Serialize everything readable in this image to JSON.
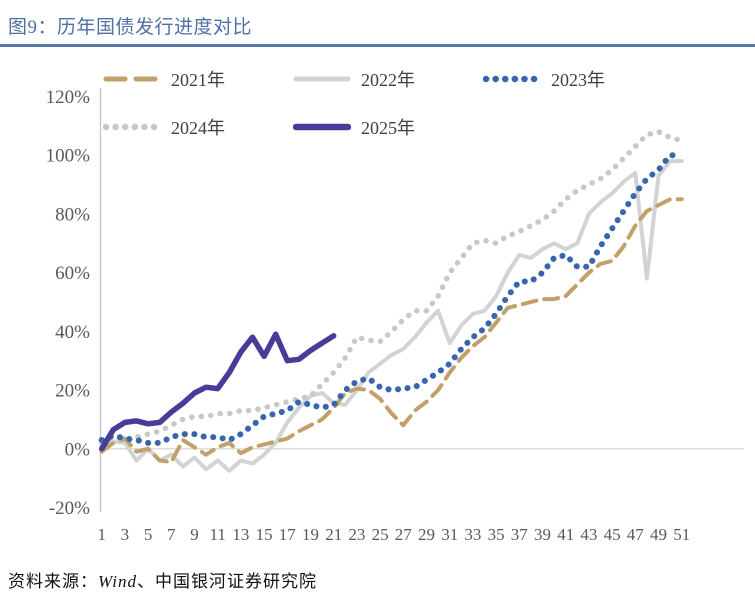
{
  "header": {
    "title": "图9：历年国债发行进度对比"
  },
  "footer": {
    "prefix": "资料来源：",
    "source": "Wind",
    "suffix": "、中国银河证券研究院"
  },
  "colors": {
    "title_text": "#4E71A5",
    "title_rule": "#5578A9",
    "axis_text": "#595959",
    "gridline": "#D9D9D9",
    "axis_spine": "#C6C6C6",
    "footer_text": "#111111",
    "legend_text": "#404040"
  },
  "chart_data": {
    "type": "line",
    "title": "图9：历年国债发行进度对比",
    "xlabel": "",
    "ylabel": "",
    "x_unit": "week",
    "x_start": 1,
    "xlim": [
      1,
      52
    ],
    "ylim": [
      -20,
      120
    ],
    "grid": "only-zero-line",
    "legend_position": "top",
    "x_ticks": [
      1,
      3,
      5,
      7,
      9,
      11,
      13,
      15,
      17,
      19,
      21,
      23,
      25,
      27,
      29,
      31,
      33,
      35,
      37,
      39,
      41,
      43,
      45,
      47,
      49,
      51
    ],
    "y_ticks": [
      {
        "label": "120%",
        "value": 120
      },
      {
        "label": "100%",
        "value": 100
      },
      {
        "label": "80%",
        "value": 80
      },
      {
        "label": "60%",
        "value": 60
      },
      {
        "label": "40%",
        "value": 40
      },
      {
        "label": "20%",
        "value": 20
      },
      {
        "label": "0%",
        "value": 0
      },
      {
        "label": "-20%",
        "value": -20
      }
    ],
    "series": [
      {
        "name": "2021年",
        "color": "#C2A06A",
        "style": "dashed",
        "line_width": 4,
        "values": [
          -1,
          2,
          3.5,
          -1,
          0,
          -4,
          -4.5,
          3,
          0.5,
          -2,
          0.5,
          2,
          -1.5,
          0.5,
          1.5,
          2.5,
          3.5,
          6,
          8,
          10,
          14,
          19,
          20.5,
          20,
          17,
          12,
          8,
          13,
          16,
          20,
          26,
          31,
          35,
          38,
          43,
          48,
          49,
          50,
          51,
          51,
          52,
          56,
          60,
          63,
          64,
          69,
          76,
          81,
          83,
          85,
          85
        ]
      },
      {
        "name": "2022年",
        "color": "#D3D3D3",
        "style": "solid",
        "line_width": 4,
        "values": [
          0,
          2.5,
          2,
          -4,
          0,
          -4,
          -2,
          -6,
          -3,
          -7,
          -4,
          -7.5,
          -4,
          -5,
          -2,
          2,
          9,
          14,
          18,
          19,
          15.5,
          15,
          20,
          26,
          29,
          32,
          34,
          38,
          43,
          47,
          36,
          42,
          46,
          47,
          52,
          60,
          66,
          65,
          68,
          70,
          68,
          70,
          80,
          84,
          87,
          91,
          94,
          58,
          93,
          98,
          98
        ]
      },
      {
        "name": "2023年",
        "color": "#3765B0",
        "style": "dotted",
        "line_width": 6,
        "values": [
          3,
          4.5,
          3.5,
          3,
          2,
          2,
          4,
          5,
          5,
          4,
          4,
          3,
          5,
          8,
          11,
          12,
          13,
          16,
          15,
          14,
          15,
          20,
          23,
          24,
          21,
          20,
          20.5,
          21,
          23.5,
          26,
          29,
          34,
          38,
          41,
          46,
          52,
          57,
          57,
          60,
          65,
          66,
          62,
          62,
          69,
          75,
          81,
          87,
          92,
          95,
          100,
          100
        ]
      },
      {
        "name": "2024年",
        "color": "#C8C8C8",
        "style": "dotted",
        "line_width": 5.5,
        "values": [
          2,
          4,
          3,
          4,
          5,
          6,
          8,
          10,
          11,
          11,
          12,
          12,
          13,
          13,
          14,
          15,
          16,
          17,
          18,
          22,
          26,
          31,
          38,
          37,
          36.5,
          40,
          44,
          47,
          47,
          52,
          60,
          65,
          70,
          71,
          70,
          72.5,
          74,
          76,
          78,
          81,
          85,
          88,
          90,
          92,
          95,
          99,
          103,
          107,
          108,
          106,
          105
        ]
      },
      {
        "name": "2025年",
        "color": "#483C99",
        "style": "solid",
        "line_width": 5.5,
        "values": [
          0,
          6.5,
          9,
          9.5,
          8.5,
          9,
          12.5,
          15.5,
          19,
          21,
          20.5,
          26,
          33,
          38,
          31.5,
          39,
          30,
          30.5,
          33.5,
          36,
          38.5
        ]
      }
    ]
  }
}
